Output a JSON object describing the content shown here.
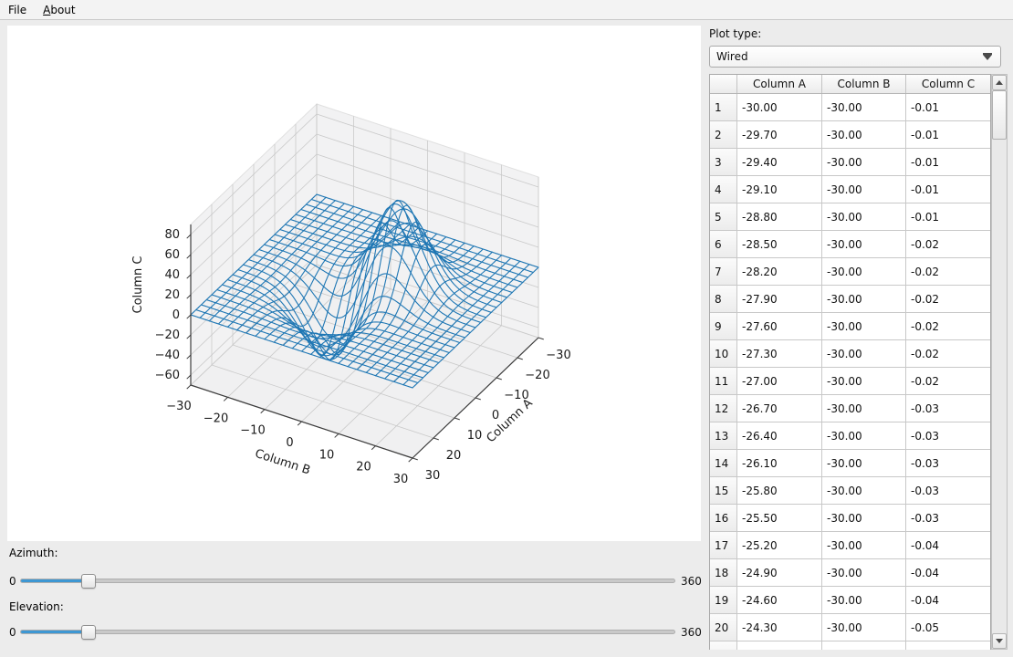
{
  "menubar": {
    "items": [
      {
        "label": "File",
        "underline_index": -1
      },
      {
        "label": "About",
        "underline_index": 0
      }
    ]
  },
  "chart_data": {
    "type": "wireframe-3d",
    "title": "",
    "view": {
      "grid": true
    },
    "axes": {
      "x": {
        "label": "Column B",
        "range": [
          -30,
          30
        ],
        "ticks": [
          -30,
          -20,
          -10,
          0,
          10,
          20,
          30
        ]
      },
      "y": {
        "label": "Column A",
        "range": [
          -30,
          30
        ],
        "ticks": [
          -30,
          -20,
          -10,
          0,
          10,
          20,
          30
        ]
      },
      "z": {
        "label": "Column C",
        "range": [
          -70,
          90
        ],
        "ticks": [
          80,
          60,
          40,
          20,
          0,
          -20,
          -40,
          -60
        ]
      }
    },
    "surface": {
      "color": "#1f77b4",
      "line_width": 1.1,
      "grid_cells": 24,
      "peak": {
        "x": 5.5,
        "y": -5.5,
        "amp": 88
      },
      "valley": {
        "x": -5.5,
        "y": 5.5,
        "amp": 66
      },
      "sigma": 6.5,
      "description": "z = peak.amp*exp(-((x-peak.x)^2+(y-peak.y)^2)/(2*sigma^2)) - valley.amp*exp(-((x-valley.x)^2+(y-valley.y)^2)/(2*sigma^2))"
    },
    "colors": {
      "pane_floor": "#f0f0f1",
      "pane_wall": "#f2f2f3",
      "grid_line": "#c9c9c9",
      "spine": "#3c3c3c",
      "text": "#1a1a1a"
    }
  },
  "controls": {
    "azimuth": {
      "label": "Azimuth:",
      "min_label": "0",
      "max_label": "360",
      "handle_percent": 9.5
    },
    "elevation": {
      "label": "Elevation:",
      "min_label": "0",
      "max_label": "360",
      "handle_percent": 9.5
    }
  },
  "right_panel": {
    "plot_type_label": "Plot type:",
    "plot_type_value": "Wired",
    "table": {
      "headers": [
        "",
        "Column A",
        "Column B",
        "Column C"
      ],
      "rows": [
        {
          "n": "1",
          "a": "-30.00",
          "b": "-30.00",
          "c": "-0.01"
        },
        {
          "n": "2",
          "a": "-29.70",
          "b": "-30.00",
          "c": "-0.01"
        },
        {
          "n": "3",
          "a": "-29.40",
          "b": "-30.00",
          "c": "-0.01"
        },
        {
          "n": "4",
          "a": "-29.10",
          "b": "-30.00",
          "c": "-0.01"
        },
        {
          "n": "5",
          "a": "-28.80",
          "b": "-30.00",
          "c": "-0.01"
        },
        {
          "n": "6",
          "a": "-28.50",
          "b": "-30.00",
          "c": "-0.02"
        },
        {
          "n": "7",
          "a": "-28.20",
          "b": "-30.00",
          "c": "-0.02"
        },
        {
          "n": "8",
          "a": "-27.90",
          "b": "-30.00",
          "c": "-0.02"
        },
        {
          "n": "9",
          "a": "-27.60",
          "b": "-30.00",
          "c": "-0.02"
        },
        {
          "n": "10",
          "a": "-27.30",
          "b": "-30.00",
          "c": "-0.02"
        },
        {
          "n": "11",
          "a": "-27.00",
          "b": "-30.00",
          "c": "-0.02"
        },
        {
          "n": "12",
          "a": "-26.70",
          "b": "-30.00",
          "c": "-0.03"
        },
        {
          "n": "13",
          "a": "-26.40",
          "b": "-30.00",
          "c": "-0.03"
        },
        {
          "n": "14",
          "a": "-26.10",
          "b": "-30.00",
          "c": "-0.03"
        },
        {
          "n": "15",
          "a": "-25.80",
          "b": "-30.00",
          "c": "-0.03"
        },
        {
          "n": "16",
          "a": "-25.50",
          "b": "-30.00",
          "c": "-0.03"
        },
        {
          "n": "17",
          "a": "-25.20",
          "b": "-30.00",
          "c": "-0.04"
        },
        {
          "n": "18",
          "a": "-24.90",
          "b": "-30.00",
          "c": "-0.04"
        },
        {
          "n": "19",
          "a": "-24.60",
          "b": "-30.00",
          "c": "-0.04"
        },
        {
          "n": "20",
          "a": "-24.30",
          "b": "-30.00",
          "c": "-0.05"
        }
      ]
    }
  }
}
